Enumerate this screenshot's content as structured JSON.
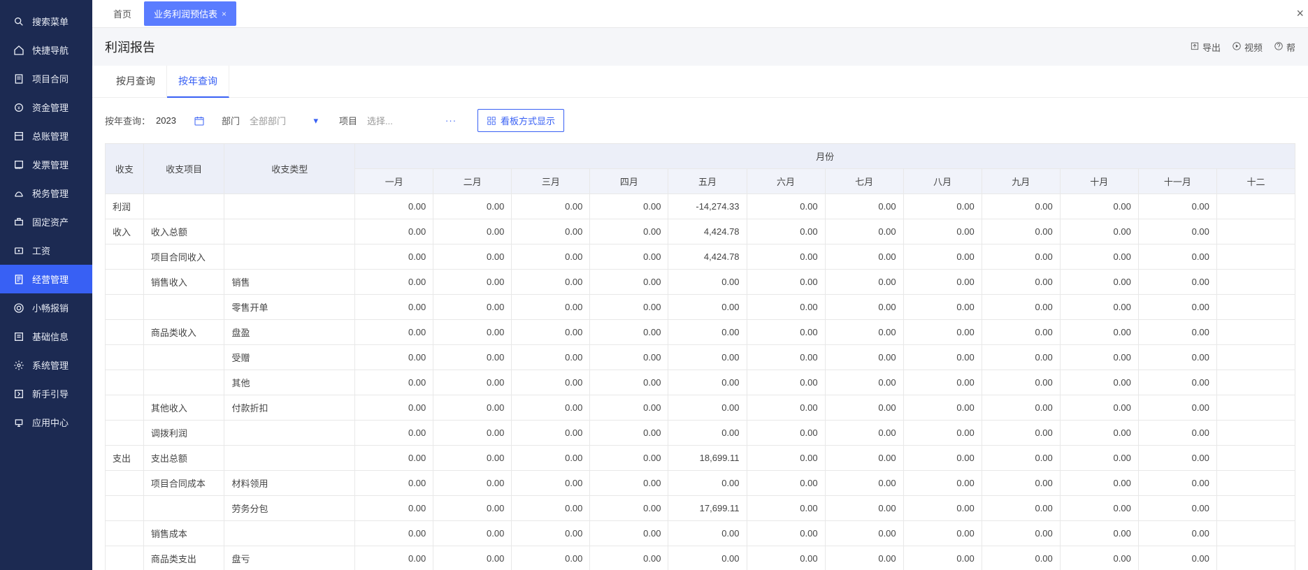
{
  "sidebar": {
    "items": [
      {
        "label": "搜索菜单",
        "icon": "search"
      },
      {
        "label": "快捷导航",
        "icon": "home"
      },
      {
        "label": "项目合同",
        "icon": "doc"
      },
      {
        "label": "资金管理",
        "icon": "coin"
      },
      {
        "label": "总账管理",
        "icon": "ledger"
      },
      {
        "label": "发票管理",
        "icon": "invoice"
      },
      {
        "label": "税务管理",
        "icon": "tax"
      },
      {
        "label": "固定资产",
        "icon": "asset"
      },
      {
        "label": "工资",
        "icon": "wage"
      },
      {
        "label": "经营管理",
        "icon": "biz",
        "active": true
      },
      {
        "label": "小畅报销",
        "icon": "claim"
      },
      {
        "label": "基础信息",
        "icon": "info"
      },
      {
        "label": "系统管理",
        "icon": "gear"
      },
      {
        "label": "新手引导",
        "icon": "guide"
      },
      {
        "label": "应用中心",
        "icon": "apps"
      }
    ]
  },
  "tabs": {
    "home": "首页",
    "active_label": "业务利润预估表"
  },
  "page": {
    "title": "利润报告",
    "export": "导出",
    "video": "视频",
    "help": "帮"
  },
  "subtabs": {
    "month": "按月查询",
    "year": "按年查询"
  },
  "filters": {
    "year_label": "按年查询：",
    "year_value": "2023",
    "dept_label": "部门",
    "dept_placeholder": "全部部门",
    "project_label": "项目",
    "project_placeholder": "选择...",
    "board_view": "看板方式显示"
  },
  "table": {
    "head": {
      "io": "收支",
      "item": "收支项目",
      "type": "收支类型",
      "months_group": "月份",
      "months": [
        "一月",
        "二月",
        "三月",
        "四月",
        "五月",
        "六月",
        "七月",
        "八月",
        "九月",
        "十月",
        "十一月",
        "十二"
      ]
    },
    "rows": [
      {
        "a": "利润",
        "b": "",
        "c": "",
        "v": [
          "0.00",
          "0.00",
          "0.00",
          "0.00",
          "-14,274.33",
          "0.00",
          "0.00",
          "0.00",
          "0.00",
          "0.00",
          "0.00",
          ""
        ]
      },
      {
        "a": "收入",
        "b": "收入总额",
        "c": "",
        "v": [
          "0.00",
          "0.00",
          "0.00",
          "0.00",
          "4,424.78",
          "0.00",
          "0.00",
          "0.00",
          "0.00",
          "0.00",
          "0.00",
          ""
        ]
      },
      {
        "a": "",
        "b": "项目合同收入",
        "c": "",
        "v": [
          "0.00",
          "0.00",
          "0.00",
          "0.00",
          "4,424.78",
          "0.00",
          "0.00",
          "0.00",
          "0.00",
          "0.00",
          "0.00",
          ""
        ]
      },
      {
        "a": "",
        "b": "销售收入",
        "c": "销售",
        "v": [
          "0.00",
          "0.00",
          "0.00",
          "0.00",
          "0.00",
          "0.00",
          "0.00",
          "0.00",
          "0.00",
          "0.00",
          "0.00",
          ""
        ]
      },
      {
        "a": "",
        "b": "",
        "c": "零售开单",
        "v": [
          "0.00",
          "0.00",
          "0.00",
          "0.00",
          "0.00",
          "0.00",
          "0.00",
          "0.00",
          "0.00",
          "0.00",
          "0.00",
          ""
        ]
      },
      {
        "a": "",
        "b": "商品类收入",
        "c": "盘盈",
        "v": [
          "0.00",
          "0.00",
          "0.00",
          "0.00",
          "0.00",
          "0.00",
          "0.00",
          "0.00",
          "0.00",
          "0.00",
          "0.00",
          ""
        ]
      },
      {
        "a": "",
        "b": "",
        "c": "受赠",
        "v": [
          "0.00",
          "0.00",
          "0.00",
          "0.00",
          "0.00",
          "0.00",
          "0.00",
          "0.00",
          "0.00",
          "0.00",
          "0.00",
          ""
        ]
      },
      {
        "a": "",
        "b": "",
        "c": "其他",
        "v": [
          "0.00",
          "0.00",
          "0.00",
          "0.00",
          "0.00",
          "0.00",
          "0.00",
          "0.00",
          "0.00",
          "0.00",
          "0.00",
          ""
        ]
      },
      {
        "a": "",
        "b": "其他收入",
        "c": "付款折扣",
        "v": [
          "0.00",
          "0.00",
          "0.00",
          "0.00",
          "0.00",
          "0.00",
          "0.00",
          "0.00",
          "0.00",
          "0.00",
          "0.00",
          ""
        ]
      },
      {
        "a": "",
        "b": "调拨利润",
        "c": "",
        "v": [
          "0.00",
          "0.00",
          "0.00",
          "0.00",
          "0.00",
          "0.00",
          "0.00",
          "0.00",
          "0.00",
          "0.00",
          "0.00",
          ""
        ]
      },
      {
        "a": "支出",
        "b": "支出总额",
        "c": "",
        "v": [
          "0.00",
          "0.00",
          "0.00",
          "0.00",
          "18,699.11",
          "0.00",
          "0.00",
          "0.00",
          "0.00",
          "0.00",
          "0.00",
          ""
        ]
      },
      {
        "a": "",
        "b": "项目合同成本",
        "c": "材料领用",
        "v": [
          "0.00",
          "0.00",
          "0.00",
          "0.00",
          "0.00",
          "0.00",
          "0.00",
          "0.00",
          "0.00",
          "0.00",
          "0.00",
          ""
        ]
      },
      {
        "a": "",
        "b": "",
        "c": "劳务分包",
        "v": [
          "0.00",
          "0.00",
          "0.00",
          "0.00",
          "17,699.11",
          "0.00",
          "0.00",
          "0.00",
          "0.00",
          "0.00",
          "0.00",
          ""
        ]
      },
      {
        "a": "",
        "b": "销售成本",
        "c": "",
        "v": [
          "0.00",
          "0.00",
          "0.00",
          "0.00",
          "0.00",
          "0.00",
          "0.00",
          "0.00",
          "0.00",
          "0.00",
          "0.00",
          ""
        ]
      },
      {
        "a": "",
        "b": "商品类支出",
        "c": "盘亏",
        "v": [
          "0.00",
          "0.00",
          "0.00",
          "0.00",
          "0.00",
          "0.00",
          "0.00",
          "0.00",
          "0.00",
          "0.00",
          "0.00",
          ""
        ]
      }
    ]
  },
  "colors": {
    "sidebar_bg": "#1c2a52",
    "accent": "#3860f4",
    "tab_active": "#5a7cff",
    "header_bg": "#f5f6f9",
    "th_bg": "#f1f3fa",
    "border": "#e8e8e8"
  }
}
